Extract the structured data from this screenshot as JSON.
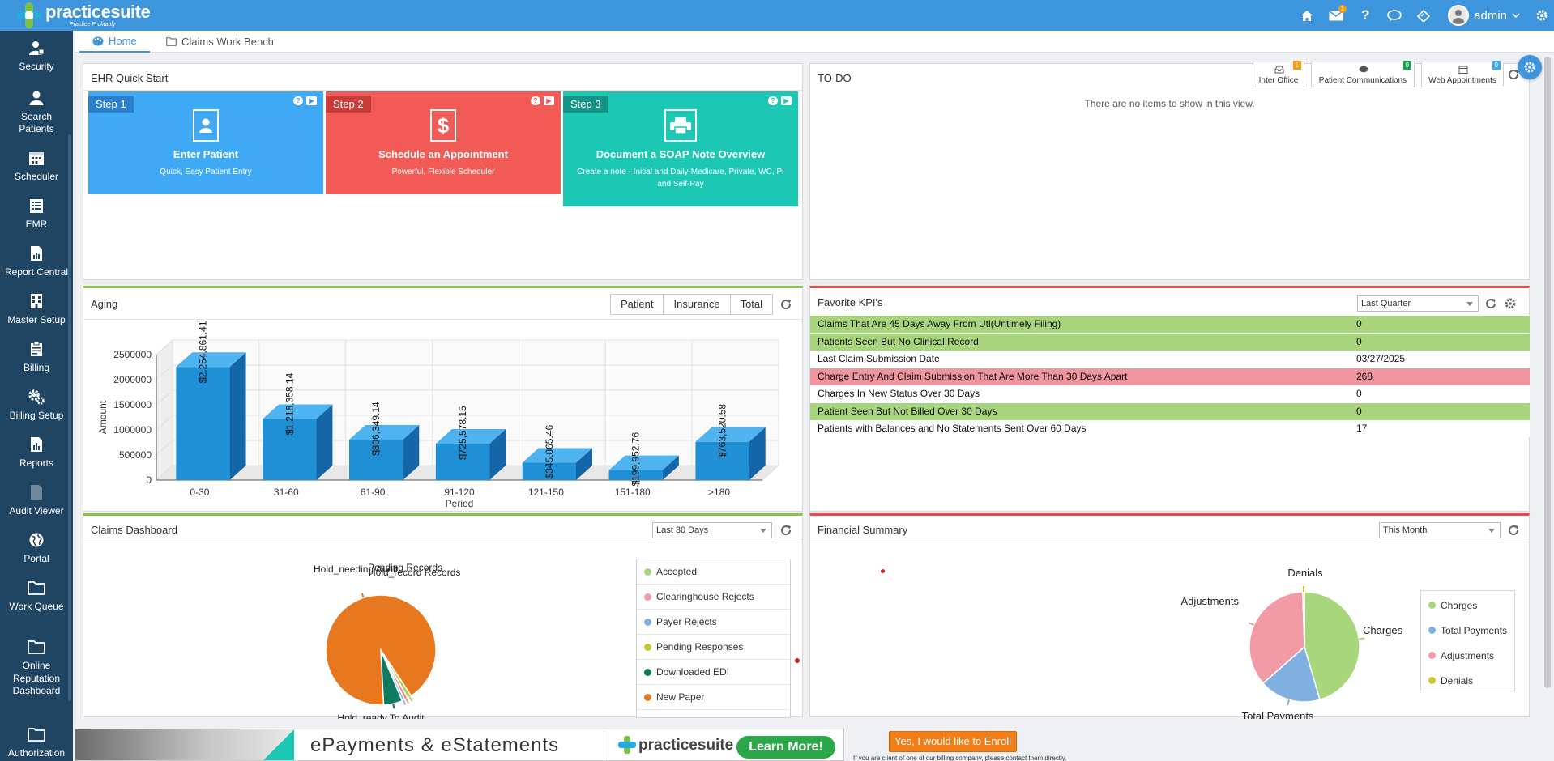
{
  "header": {
    "brand": "practicesuite",
    "tagline": "Practice Profitably",
    "mail_badge": "1",
    "user_name": "admin"
  },
  "sidebar": {
    "items": [
      {
        "label": "Security",
        "icon": "user-lock-icon"
      },
      {
        "label": "Search Patients",
        "icon": "search-user-icon"
      },
      {
        "label": "Scheduler",
        "icon": "calendar-icon"
      },
      {
        "label": "EMR",
        "icon": "clipboard-icon"
      },
      {
        "label": "Report Central",
        "icon": "report-icon"
      },
      {
        "label": "Master Setup",
        "icon": "building-icon"
      },
      {
        "label": "Billing",
        "icon": "billing-icon"
      },
      {
        "label": "Billing Setup",
        "icon": "gears-icon"
      },
      {
        "label": "Reports",
        "icon": "report-doc-icon"
      },
      {
        "label": "Audit Viewer",
        "icon": "audit-icon"
      },
      {
        "label": "Portal",
        "icon": "globe-icon"
      },
      {
        "label": "Work Queue",
        "icon": "folder-icon"
      },
      {
        "label": "Online Reputation Dashboard",
        "icon": "folder-icon"
      },
      {
        "label": "Authorization Desk",
        "icon": "folder-icon"
      }
    ]
  },
  "tabs": [
    {
      "label": "Home"
    },
    {
      "label": "Claims Work Bench"
    }
  ],
  "ehr": {
    "title": "EHR Quick Start",
    "steps": [
      {
        "step": "Step 1",
        "title": "Enter Patient",
        "desc": "Quick, Easy Patient Entry",
        "color": "#3fa9f5"
      },
      {
        "step": "Step 2",
        "title": "Schedule an Appointment",
        "desc": "Powerful, Flexible Scheduler",
        "color": "#f25a55"
      },
      {
        "step": "Step 3",
        "title": "Document a SOAP Note Overview",
        "desc": "Create a note - Initial and Daily-Medicare, Private, WC, PI and Self-Pay",
        "color": "#1cc8b4"
      }
    ]
  },
  "todo": {
    "title": "TO-DO",
    "empty": "There are no items to show in this view.",
    "buttons": [
      {
        "label": "Inter Office",
        "count": "1",
        "color": "#f39c12"
      },
      {
        "label": "Patient Communications",
        "count": "0",
        "color": "#1f9d55"
      },
      {
        "label": "Web Appointments",
        "count": "0",
        "color": "#3fa9f5"
      }
    ]
  },
  "aging": {
    "title": "Aging",
    "segments": [
      "Patient",
      "Insurance",
      "Total"
    ]
  },
  "chart_data": [
    {
      "type": "bar",
      "title": "",
      "categories": [
        "0-30",
        "31-60",
        "61-90",
        "91-120",
        "121-150",
        "151-180",
        ">180"
      ],
      "values": [
        2254861.41,
        1218358.14,
        806349.14,
        725578.15,
        345865.46,
        199952.76,
        763520.58
      ],
      "labels": [
        "$2,254,861.41",
        "$1,218,358.14",
        "$806,349.14",
        "$725,578.15",
        "$345,865.46",
        "$199,952.76",
        "$763,520.58"
      ],
      "xlabel": "Period",
      "ylabel": "Amount",
      "ylim": [
        0,
        2500000
      ],
      "yticks": [
        "0",
        "500000",
        "1000000",
        "1500000",
        "2000000",
        "2500000"
      ],
      "color": "#1f8fd6"
    },
    {
      "type": "pie",
      "title": "",
      "series": [
        {
          "values": [
            91.5,
            1.2,
            1.0,
            0.8,
            5.5
          ]
        }
      ],
      "categories": [
        "Hold_ready To Audit",
        "Hold_needing Audit",
        "Pending Records",
        "Hold_record Records",
        "Downloaded EDI"
      ],
      "colors": [
        "#e8781f",
        "#b3cc57",
        "#f08c95",
        "#8ab9e0",
        "#0e7a5f"
      ],
      "slice_labels": [
        "Hold_ready To Audit",
        "Hold_needing Audit",
        "Pending Records",
        "Hold_record Records"
      ]
    },
    {
      "type": "pie",
      "title": "",
      "categories": [
        "Charges",
        "Total Payments",
        "Adjustments",
        "Denials"
      ],
      "series": [
        {
          "values": [
            45.5,
            18,
            36,
            0.5
          ]
        }
      ],
      "colors": [
        "#a8d67a",
        "#7fb0e0",
        "#f29ba6",
        "#d2c832"
      ]
    }
  ],
  "kpi": {
    "title": "Favorite KPI's",
    "range": "Last Quarter",
    "rows": [
      {
        "label": "Claims That Are 45 Days Away From Utl(Untimely Filing)",
        "value": "0",
        "bg": "#a9d47e"
      },
      {
        "label": "Patients Seen But No Clinical Record",
        "value": "0",
        "bg": "#a9d47e"
      },
      {
        "label": "Last Claim Submission Date",
        "value": "03/27/2025",
        "bg": "#ffffff"
      },
      {
        "label": "Charge Entry And Claim Submission That Are More Than 30 Days Apart",
        "value": "268",
        "bg": "#ef95a0"
      },
      {
        "label": "Charges In New Status Over 30 Days",
        "value": "0",
        "bg": "#ffffff"
      },
      {
        "label": "Patient Seen But Not Billed Over 30 Days",
        "value": "0",
        "bg": "#a9d47e"
      },
      {
        "label": "Patients with Balances and No Statements Sent Over 60 Days",
        "value": "17",
        "bg": "#ffffff"
      }
    ]
  },
  "claims": {
    "title": "Claims Dashboard",
    "range": "Last 30 Days",
    "legend": [
      {
        "label": "Accepted",
        "color": "#a8d67a"
      },
      {
        "label": "Clearinghouse Rejects",
        "color": "#f29ba6"
      },
      {
        "label": "Payer Rejects",
        "color": "#7fb0e0"
      },
      {
        "label": "Pending Responses",
        "color": "#c9c832"
      },
      {
        "label": "Downloaded EDI",
        "color": "#0e7a5f"
      },
      {
        "label": "New Paper",
        "color": "#e8781f"
      }
    ]
  },
  "financial": {
    "title": "Financial Summary",
    "range": "This Month",
    "legend": [
      {
        "label": "Charges",
        "color": "#a8d67a"
      },
      {
        "label": "Total Payments",
        "color": "#7fb0e0"
      },
      {
        "label": "Adjustments",
        "color": "#f29ba6"
      },
      {
        "label": "Denials",
        "color": "#c9c832"
      }
    ]
  },
  "banner": {
    "text": "ePayments & eStatements",
    "brand": "practicesuite",
    "cta": "Learn More!",
    "enroll": "Yes, I would like to Enroll",
    "note": "If you are client of one of our billing company, please contact them directly."
  }
}
